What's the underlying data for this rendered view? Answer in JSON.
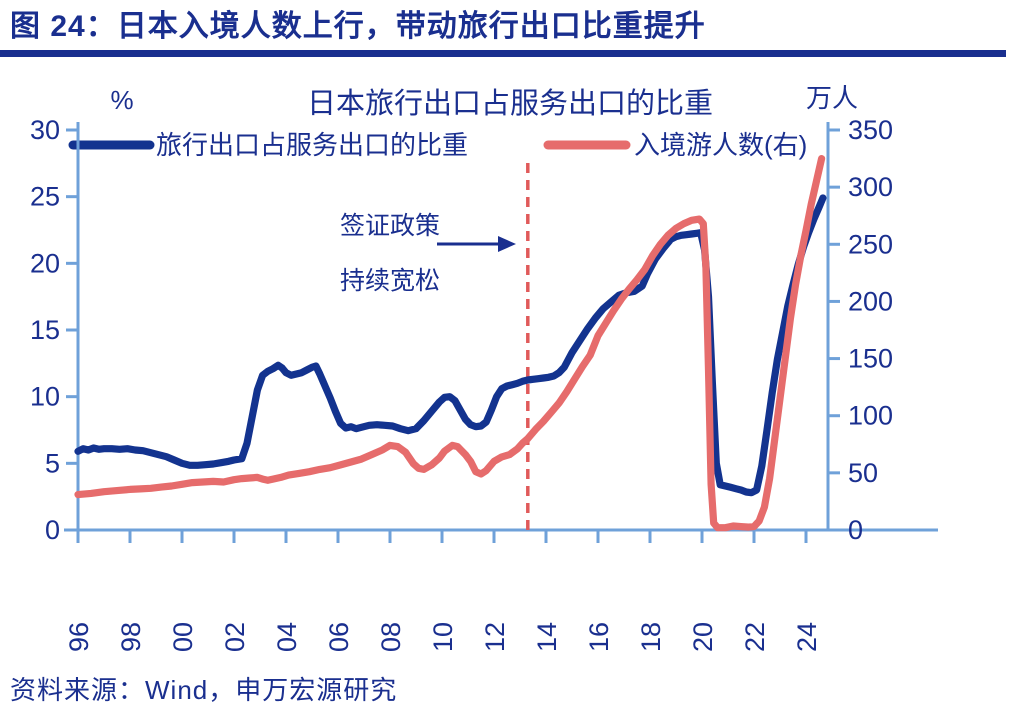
{
  "header": {
    "title": "图 24：日本入境人数上行，带动旅行出口比重提升"
  },
  "footer": {
    "source": "资料来源：Wind，申万宏源研究"
  },
  "colors": {
    "navy": "#1A2F8F",
    "line_blue": "#13338F",
    "line_red": "#E66C6C",
    "dash_red": "#E05A5A",
    "axis_blue": "#6FA1D9"
  },
  "chart_data": {
    "type": "line",
    "title": "日本旅行出口占服务出口的比重",
    "x_ticks": [
      1996,
      1998,
      2000,
      2002,
      2004,
      2006,
      2008,
      2010,
      2012,
      2014,
      2016,
      2018,
      2020,
      2022,
      2024
    ],
    "x_range": [
      1996,
      2024.8
    ],
    "left_axis": {
      "label": "%",
      "min": 0,
      "max": 30,
      "ticks": [
        0,
        5,
        10,
        15,
        20,
        25,
        30
      ]
    },
    "right_axis": {
      "label": "万人",
      "min": 0,
      "max": 350,
      "ticks": [
        0,
        50,
        100,
        150,
        200,
        250,
        300,
        350
      ]
    },
    "annotation": {
      "lines": [
        "签证政策",
        "持续宽松"
      ],
      "x": 2013.3
    },
    "legend_position": "top",
    "grid": false,
    "series": [
      {
        "name": "旅行出口占服务出口的比重",
        "axis": "left",
        "color": "#13338F",
        "points": [
          [
            1996.0,
            5.9
          ],
          [
            1996.2,
            6.1
          ],
          [
            1996.4,
            6.0
          ],
          [
            1996.6,
            6.15
          ],
          [
            1996.8,
            6.05
          ],
          [
            1997.0,
            6.1
          ],
          [
            1997.3,
            6.1
          ],
          [
            1997.6,
            6.05
          ],
          [
            1997.9,
            6.1
          ],
          [
            1998.2,
            6.0
          ],
          [
            1998.5,
            5.95
          ],
          [
            1998.8,
            5.8
          ],
          [
            1999.1,
            5.65
          ],
          [
            1999.4,
            5.5
          ],
          [
            1999.7,
            5.25
          ],
          [
            2000.0,
            5.0
          ],
          [
            2000.3,
            4.85
          ],
          [
            2000.6,
            4.85
          ],
          [
            2000.9,
            4.9
          ],
          [
            2001.2,
            4.95
          ],
          [
            2001.5,
            5.05
          ],
          [
            2001.8,
            5.15
          ],
          [
            2002.0,
            5.25
          ],
          [
            2002.3,
            5.35
          ],
          [
            2002.5,
            6.5
          ],
          [
            2002.7,
            8.5
          ],
          [
            2002.9,
            10.5
          ],
          [
            2003.1,
            11.6
          ],
          [
            2003.3,
            11.9
          ],
          [
            2003.5,
            12.1
          ],
          [
            2003.7,
            12.35
          ],
          [
            2003.85,
            12.15
          ],
          [
            2004.0,
            11.8
          ],
          [
            2004.2,
            11.6
          ],
          [
            2004.4,
            11.7
          ],
          [
            2004.6,
            11.8
          ],
          [
            2004.8,
            12.0
          ],
          [
            2005.0,
            12.2
          ],
          [
            2005.15,
            12.3
          ],
          [
            2005.3,
            11.7
          ],
          [
            2005.5,
            10.8
          ],
          [
            2005.7,
            9.9
          ],
          [
            2005.9,
            8.9
          ],
          [
            2006.1,
            8.0
          ],
          [
            2006.3,
            7.65
          ],
          [
            2006.5,
            7.75
          ],
          [
            2006.7,
            7.6
          ],
          [
            2006.9,
            7.7
          ],
          [
            2007.2,
            7.85
          ],
          [
            2007.5,
            7.9
          ],
          [
            2007.8,
            7.85
          ],
          [
            2008.1,
            7.8
          ],
          [
            2008.4,
            7.6
          ],
          [
            2008.7,
            7.45
          ],
          [
            2009.0,
            7.6
          ],
          [
            2009.3,
            8.2
          ],
          [
            2009.6,
            8.9
          ],
          [
            2009.9,
            9.6
          ],
          [
            2010.1,
            9.95
          ],
          [
            2010.3,
            10.0
          ],
          [
            2010.5,
            9.7
          ],
          [
            2010.7,
            9.0
          ],
          [
            2010.9,
            8.3
          ],
          [
            2011.1,
            7.9
          ],
          [
            2011.3,
            7.75
          ],
          [
            2011.5,
            7.8
          ],
          [
            2011.7,
            8.1
          ],
          [
            2011.9,
            9.0
          ],
          [
            2012.1,
            10.0
          ],
          [
            2012.3,
            10.6
          ],
          [
            2012.5,
            10.8
          ],
          [
            2012.7,
            10.9
          ],
          [
            2012.9,
            11.0
          ],
          [
            2013.1,
            11.15
          ],
          [
            2013.3,
            11.25
          ],
          [
            2013.5,
            11.3
          ],
          [
            2013.7,
            11.35
          ],
          [
            2013.9,
            11.4
          ],
          [
            2014.1,
            11.45
          ],
          [
            2014.3,
            11.55
          ],
          [
            2014.5,
            11.8
          ],
          [
            2014.7,
            12.2
          ],
          [
            2015.0,
            13.3
          ],
          [
            2015.3,
            14.2
          ],
          [
            2015.6,
            15.1
          ],
          [
            2015.9,
            15.9
          ],
          [
            2016.2,
            16.6
          ],
          [
            2016.5,
            17.1
          ],
          [
            2016.8,
            17.6
          ],
          [
            2017.1,
            17.8
          ],
          [
            2017.4,
            17.9
          ],
          [
            2017.7,
            18.3
          ],
          [
            2017.9,
            19.2
          ],
          [
            2018.2,
            20.3
          ],
          [
            2018.5,
            21.1
          ],
          [
            2018.8,
            21.8
          ],
          [
            2019.0,
            22.0
          ],
          [
            2019.2,
            22.1
          ],
          [
            2019.4,
            22.15
          ],
          [
            2019.6,
            22.2
          ],
          [
            2019.8,
            22.25
          ],
          [
            2019.95,
            22.3
          ],
          [
            2020.1,
            21.0
          ],
          [
            2020.25,
            17.5
          ],
          [
            2020.4,
            11.0
          ],
          [
            2020.55,
            5.0
          ],
          [
            2020.7,
            3.4
          ],
          [
            2020.9,
            3.3
          ],
          [
            2021.1,
            3.2
          ],
          [
            2021.3,
            3.1
          ],
          [
            2021.5,
            3.0
          ],
          [
            2021.7,
            2.85
          ],
          [
            2021.9,
            2.8
          ],
          [
            2022.1,
            3.0
          ],
          [
            2022.3,
            4.8
          ],
          [
            2022.5,
            7.5
          ],
          [
            2022.7,
            10.3
          ],
          [
            2022.9,
            12.8
          ],
          [
            2023.1,
            14.8
          ],
          [
            2023.3,
            16.8
          ],
          [
            2023.5,
            18.4
          ],
          [
            2023.7,
            19.9
          ],
          [
            2023.9,
            21.2
          ],
          [
            2024.1,
            22.3
          ],
          [
            2024.3,
            23.3
          ],
          [
            2024.5,
            24.2
          ],
          [
            2024.65,
            24.9
          ]
        ]
      },
      {
        "name": "入境游人数(右)",
        "axis": "right",
        "color": "#E66C6C",
        "points": [
          [
            1996.0,
            31
          ],
          [
            1996.5,
            32
          ],
          [
            1997.0,
            33.5
          ],
          [
            1997.5,
            34.5
          ],
          [
            1998.0,
            35.5
          ],
          [
            1998.4,
            36
          ],
          [
            1998.8,
            36.5
          ],
          [
            1999.2,
            37.5
          ],
          [
            1999.6,
            38.5
          ],
          [
            2000.0,
            40
          ],
          [
            2000.4,
            41.5
          ],
          [
            2000.8,
            42
          ],
          [
            2001.2,
            42.5
          ],
          [
            2001.6,
            42
          ],
          [
            2002.0,
            44
          ],
          [
            2002.3,
            45
          ],
          [
            2002.6,
            45.5
          ],
          [
            2002.9,
            46
          ],
          [
            2003.1,
            44.5
          ],
          [
            2003.3,
            43.5
          ],
          [
            2003.5,
            44.5
          ],
          [
            2003.8,
            46
          ],
          [
            2004.1,
            48
          ],
          [
            2004.5,
            49.5
          ],
          [
            2004.9,
            51
          ],
          [
            2005.3,
            53
          ],
          [
            2005.7,
            54.5
          ],
          [
            2006.1,
            57
          ],
          [
            2006.5,
            59.5
          ],
          [
            2006.9,
            62
          ],
          [
            2007.3,
            66
          ],
          [
            2007.7,
            70
          ],
          [
            2008.0,
            74
          ],
          [
            2008.3,
            73
          ],
          [
            2008.6,
            68
          ],
          [
            2008.9,
            58
          ],
          [
            2009.1,
            54
          ],
          [
            2009.3,
            53
          ],
          [
            2009.6,
            57
          ],
          [
            2009.9,
            63
          ],
          [
            2010.1,
            69
          ],
          [
            2010.4,
            74
          ],
          [
            2010.6,
            73
          ],
          [
            2010.9,
            66
          ],
          [
            2011.1,
            60
          ],
          [
            2011.3,
            51
          ],
          [
            2011.5,
            49
          ],
          [
            2011.7,
            52
          ],
          [
            2012.0,
            60
          ],
          [
            2012.3,
            64
          ],
          [
            2012.6,
            66
          ],
          [
            2012.9,
            71
          ],
          [
            2013.1,
            76
          ],
          [
            2013.3,
            80
          ],
          [
            2013.6,
            88
          ],
          [
            2013.9,
            95
          ],
          [
            2014.2,
            103
          ],
          [
            2014.5,
            111
          ],
          [
            2014.8,
            121
          ],
          [
            2015.1,
            132
          ],
          [
            2015.4,
            143
          ],
          [
            2015.7,
            153
          ],
          [
            2016.0,
            170
          ],
          [
            2016.3,
            181
          ],
          [
            2016.6,
            192
          ],
          [
            2016.9,
            202
          ],
          [
            2017.2,
            211
          ],
          [
            2017.5,
            219
          ],
          [
            2017.8,
            228
          ],
          [
            2018.1,
            240
          ],
          [
            2018.4,
            250
          ],
          [
            2018.7,
            258
          ],
          [
            2019.0,
            264
          ],
          [
            2019.3,
            268
          ],
          [
            2019.6,
            271
          ],
          [
            2019.9,
            272
          ],
          [
            2020.05,
            268
          ],
          [
            2020.15,
            230
          ],
          [
            2020.25,
            140
          ],
          [
            2020.35,
            40
          ],
          [
            2020.45,
            6
          ],
          [
            2020.6,
            2
          ],
          [
            2020.9,
            2
          ],
          [
            2021.2,
            3.5
          ],
          [
            2021.5,
            3
          ],
          [
            2021.8,
            2.5
          ],
          [
            2022.0,
            3
          ],
          [
            2022.2,
            8
          ],
          [
            2022.4,
            20
          ],
          [
            2022.6,
            45
          ],
          [
            2022.8,
            80
          ],
          [
            2023.0,
            115
          ],
          [
            2023.2,
            150
          ],
          [
            2023.4,
            185
          ],
          [
            2023.6,
            215
          ],
          [
            2023.8,
            240
          ],
          [
            2024.0,
            262
          ],
          [
            2024.2,
            285
          ],
          [
            2024.4,
            305
          ],
          [
            2024.6,
            325
          ]
        ]
      }
    ]
  }
}
